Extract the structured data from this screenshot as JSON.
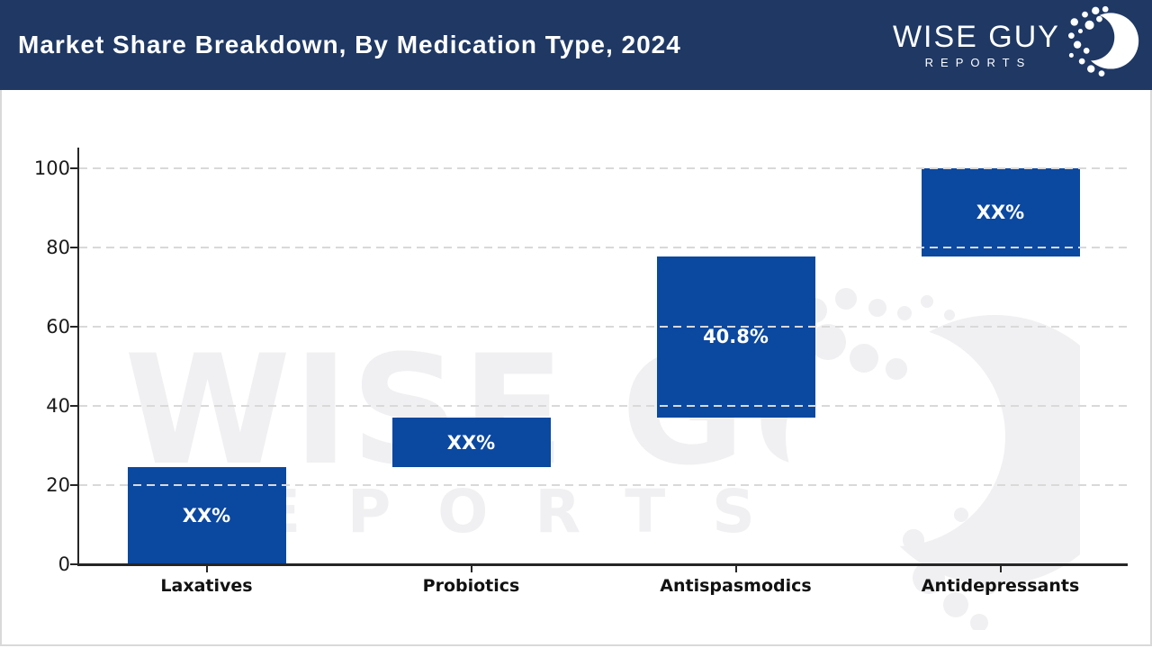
{
  "header": {
    "title": "Market Share Breakdown, By Medication Type, 2024",
    "bg_color": "#1f3864"
  },
  "brand": {
    "name": "WISE GUY",
    "subtitle": "REPORTS"
  },
  "watermark": {
    "line1": "WISE GUY",
    "line2": "REPORTS"
  },
  "chart_data": {
    "type": "bar",
    "subtype": "waterfall",
    "title": "Market Share Breakdown, By Medication Type, 2024",
    "categories": [
      "Laxatives",
      "Probiotics",
      "Antispasmodics",
      "Antidepressants"
    ],
    "segments": [
      {
        "category": "Laxatives",
        "start": 0,
        "end": 24.5,
        "label": "XX%"
      },
      {
        "category": "Probiotics",
        "start": 24.5,
        "end": 37,
        "label": "XX%"
      },
      {
        "category": "Antispasmodics",
        "start": 37,
        "end": 77.8,
        "label": "40.8%"
      },
      {
        "category": "Antidepressants",
        "start": 77.8,
        "end": 100,
        "label": "XX%"
      }
    ],
    "ylim": [
      0,
      100
    ],
    "yticks": [
      0,
      20,
      40,
      60,
      80,
      100
    ],
    "xlabel": "",
    "ylabel": "",
    "grid": "horizontal-dashed-over-bars",
    "legend": "none",
    "bar_color": "#0b48a0",
    "bar_label_color": "#ffffff",
    "grid_color": "#d9d9d9",
    "axis_color": "#262626"
  }
}
